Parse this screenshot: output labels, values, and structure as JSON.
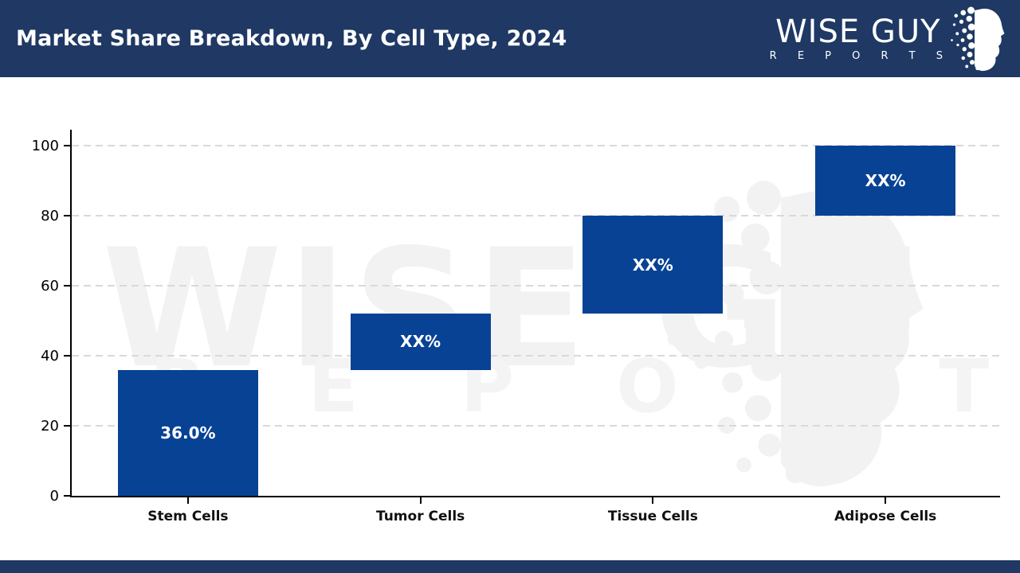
{
  "header": {
    "title": "Market Share Breakdown, By Cell Type, 2024",
    "logo": {
      "line1": "WISE GUY",
      "line2": "R E P O R T S"
    }
  },
  "watermark": {
    "line1": "WISE GU",
    "line2": "R E P O R T S"
  },
  "colors": {
    "header_bg": "#1f3864",
    "footer_bg": "#1f3864",
    "bar": "#084294",
    "grid": "#d9d9d9",
    "axis": "#000000",
    "bar_label": "#ffffff",
    "watermark": "#f2f2f2"
  },
  "chart_data": {
    "type": "bar",
    "subtype": "waterfall",
    "title": "Market Share Breakdown, By Cell Type, 2024",
    "categories": [
      "Stem Cells",
      "Tumor Cells",
      "Tissue Cells",
      "Adipose Cells"
    ],
    "bars": [
      {
        "category": "Stem Cells",
        "start": 0,
        "end": 36,
        "label": "36.0%"
      },
      {
        "category": "Tumor Cells",
        "start": 36,
        "end": 52,
        "label": "XX%"
      },
      {
        "category": "Tissue Cells",
        "start": 52,
        "end": 80,
        "label": "XX%"
      },
      {
        "category": "Adipose Cells",
        "start": 80,
        "end": 100,
        "label": "XX%"
      }
    ],
    "yticks": [
      0,
      20,
      40,
      60,
      80,
      100
    ],
    "ylim": [
      0,
      105
    ],
    "grid": "horizontal-dashed",
    "legend": "none",
    "xlabel": "",
    "ylabel": ""
  }
}
